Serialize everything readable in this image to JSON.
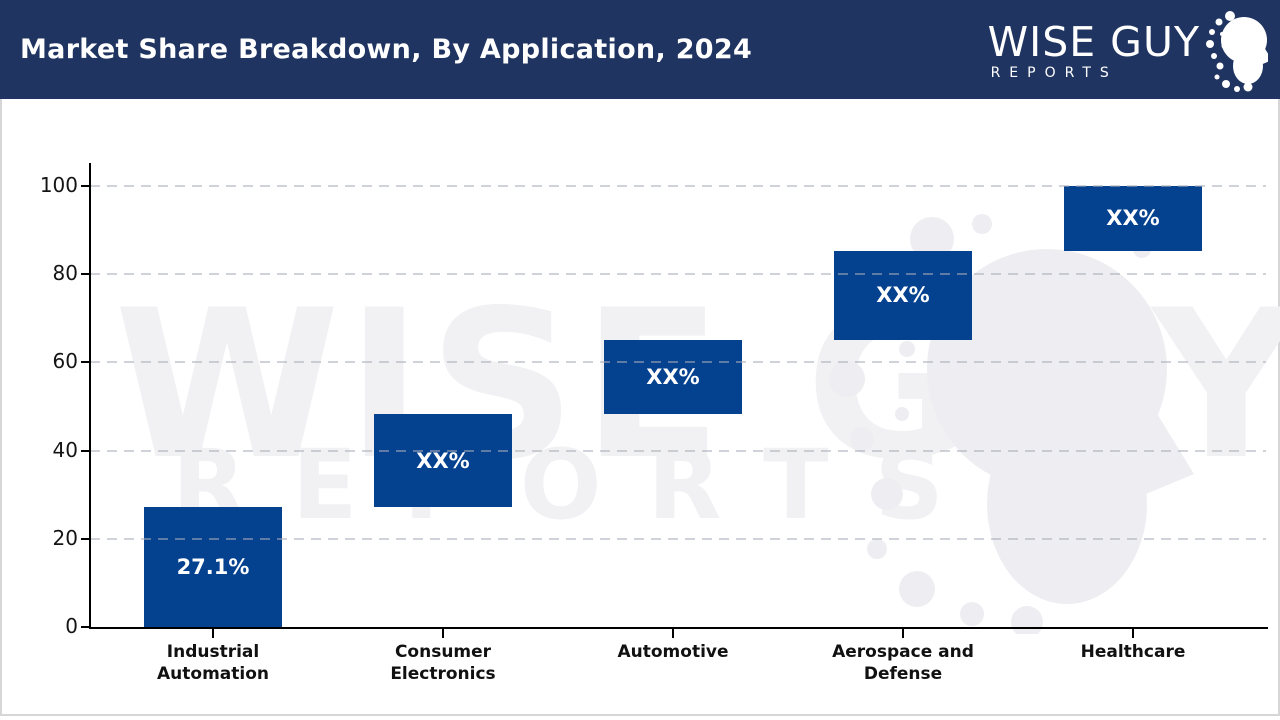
{
  "header": {
    "title": "Market Share Breakdown, By Application, 2024",
    "logo": {
      "brand": "WISE GUY",
      "sub": "REPORTS"
    }
  },
  "watermark": {
    "brand": "WISE GUY",
    "sub": "REPORTS"
  },
  "chart_data": {
    "type": "bar",
    "subtype": "waterfall",
    "title": "Market Share Breakdown, By Application, 2024",
    "categories": [
      "Industrial\nAutomation",
      "Consumer\nElectronics",
      "Automotive",
      "Aerospace and\nDefense",
      "Healthcare"
    ],
    "series": [
      {
        "name": "Market Share (%)",
        "segments": [
          {
            "category": "Industrial Automation",
            "start": 0,
            "end": 27.1,
            "label": "27.1%"
          },
          {
            "category": "Consumer Electronics",
            "start": 27.1,
            "end": 48.4,
            "label": "XX%"
          },
          {
            "category": "Automotive",
            "start": 48.4,
            "end": 65.1,
            "label": "XX%"
          },
          {
            "category": "Aerospace and Defense",
            "start": 65.1,
            "end": 85.3,
            "label": "XX%"
          },
          {
            "category": "Healthcare",
            "start": 85.3,
            "end": 100,
            "label": "XX%"
          }
        ]
      }
    ],
    "ylim": [
      0,
      100
    ],
    "yticks": [
      0,
      20,
      40,
      60,
      80,
      100
    ],
    "grid": "horizontal-dashed",
    "legend": "none",
    "bar_color": "#04418F",
    "bar_label_color": "#FFFFFF",
    "axis_color": "#000000",
    "header_bg": "#1F3461",
    "gridline_color": "#D7D9DE"
  }
}
